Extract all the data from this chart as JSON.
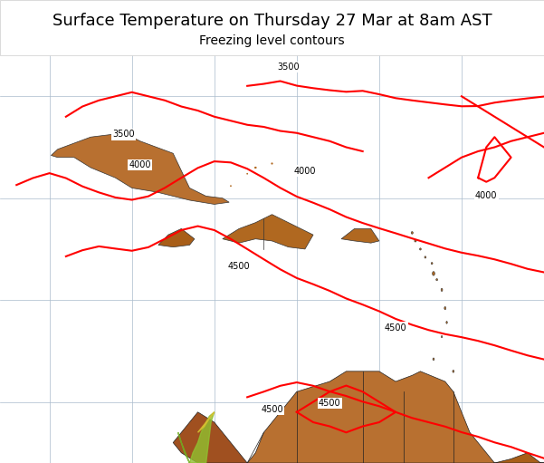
{
  "title": "Surface Temperature on Thursday 27 Mar at 8am AST",
  "subtitle": "Freezing level contours",
  "title_fontsize": 13,
  "subtitle_fontsize": 10,
  "fig_width": 6.01,
  "fig_height": 5.11,
  "dpi": 100,
  "bg_color": "#c8d4e8",
  "ocean_color": "#c8d4e8",
  "land_color_low": "#c8a040",
  "land_color_high": "#7a4010",
  "contour_color": "red",
  "contour_linewidth": 1.5,
  "contour_label_fontsize": 7,
  "border_color": "#333333",
  "grid_color": "#aabbcc",
  "title_bg": "#ffffff",
  "map_bg": "#c8d4e8"
}
